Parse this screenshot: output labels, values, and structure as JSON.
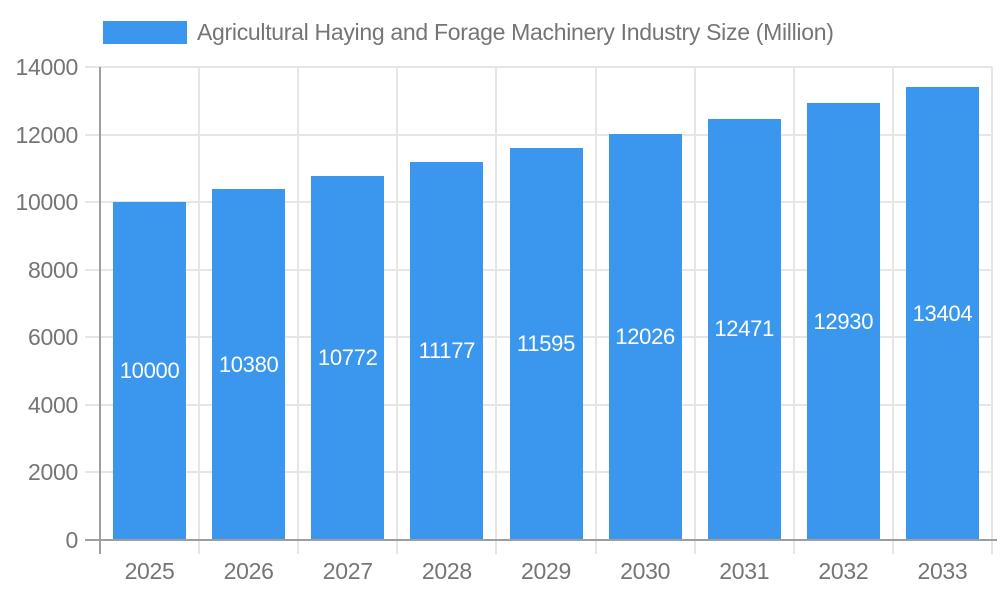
{
  "chart_data": {
    "type": "bar",
    "legend_label": "Agricultural Haying and Forage Machinery Industry Size (Million)",
    "categories": [
      "2025",
      "2026",
      "2027",
      "2028",
      "2029",
      "2030",
      "2031",
      "2032",
      "2033"
    ],
    "values": [
      10000,
      10380,
      10772,
      11177,
      11595,
      12026,
      12471,
      12930,
      13404
    ],
    "bar_labels": [
      "10000",
      "10380",
      "10772",
      "11177",
      "11595",
      "12026",
      "12471",
      "12930",
      "13404"
    ],
    "xlabel": "",
    "ylabel": "",
    "ylim": [
      0,
      14000
    ],
    "yticks": [
      0,
      2000,
      4000,
      6000,
      8000,
      10000,
      12000,
      14000
    ],
    "grid": true,
    "legend_position": "top-left",
    "colors": {
      "bar": "#3b97ed",
      "bar_label_text": "#ffffff",
      "axis_line": "#9e9e9e",
      "gridline": "#e6e6e6",
      "tick_label_text": "#757575",
      "legend_text": "#757575",
      "background": "#ffffff"
    }
  }
}
